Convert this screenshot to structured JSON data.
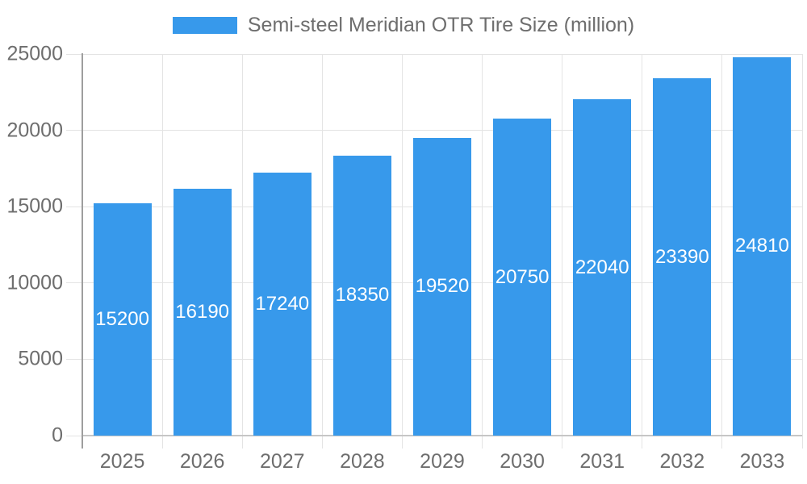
{
  "legend": {
    "label": "Semi-steel Meridian OTR Tire Size (million)"
  },
  "chart_data": {
    "type": "bar",
    "title": "Semi-steel Meridian OTR Tire Size (million)",
    "categories": [
      "2025",
      "2026",
      "2027",
      "2028",
      "2029",
      "2030",
      "2031",
      "2032",
      "2033"
    ],
    "values": [
      15200,
      16190,
      17240,
      18350,
      19520,
      20750,
      22040,
      23390,
      24810
    ],
    "value_labels_inside_bars": true,
    "xlabel": "",
    "ylabel": "",
    "ylim": [
      0,
      25000
    ],
    "ytick_step": 5000,
    "yticks": [
      0,
      5000,
      10000,
      15000,
      20000,
      25000
    ],
    "grid": true,
    "legend_position": "top",
    "colors": {
      "bar": "#3799EB",
      "bar_value_text": "#FFFFFF",
      "axis_text": "#6E6E6E",
      "gridline": "#E4E4E4",
      "y_axis_line": "#9E9E9E",
      "x_axis_line": "#C6C6C6",
      "background": "#FFFFFF"
    }
  }
}
